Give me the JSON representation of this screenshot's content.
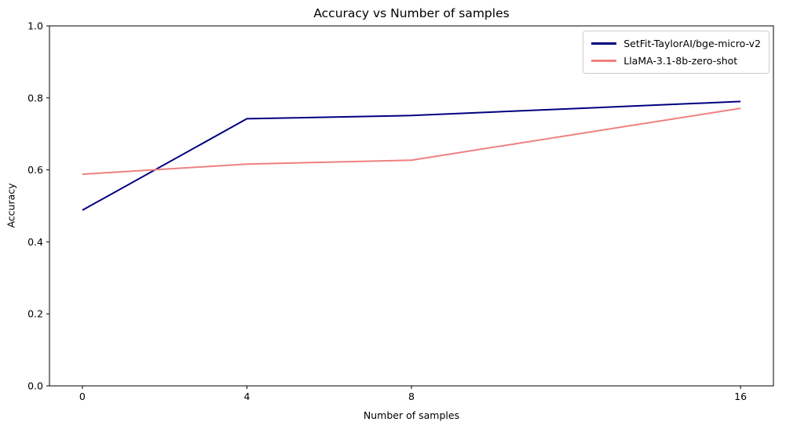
{
  "chart_data": {
    "type": "line",
    "title": "Accuracy vs Number of samples",
    "xlabel": "Number of samples",
    "ylabel": "Accuracy",
    "x": [
      0,
      4,
      8,
      16
    ],
    "series": [
      {
        "name": "SetFit-TaylorAI/bge-micro-v2",
        "color": "#000080",
        "values": [
          0.488,
          0.742,
          0.751,
          0.79
        ]
      },
      {
        "name": "LlaMA-3.1-8b-zero-shot",
        "color": "#f08080",
        "values": [
          0.588,
          0.616,
          0.627,
          0.771
        ]
      }
    ],
    "xlim": [
      -0.8,
      16.8
    ],
    "ylim": [
      0.0,
      1.0
    ],
    "xticks": [
      0,
      4,
      8,
      16
    ],
    "xtick_labels": [
      "0",
      "4",
      "8",
      "16"
    ],
    "yticks": [
      0.0,
      0.2,
      0.4,
      0.6,
      0.8,
      1.0
    ],
    "ytick_labels": [
      "0.0",
      "0.2",
      "0.4",
      "0.6",
      "0.8",
      "1.0"
    ],
    "legend": {
      "position": "upper right",
      "entries": [
        "SetFit-TaylorAI/bge-micro-v2",
        "LlaMA-3.1-8b-zero-shot"
      ]
    },
    "grid": false,
    "background_color": "#ffffff",
    "axis_color": "#000000"
  }
}
